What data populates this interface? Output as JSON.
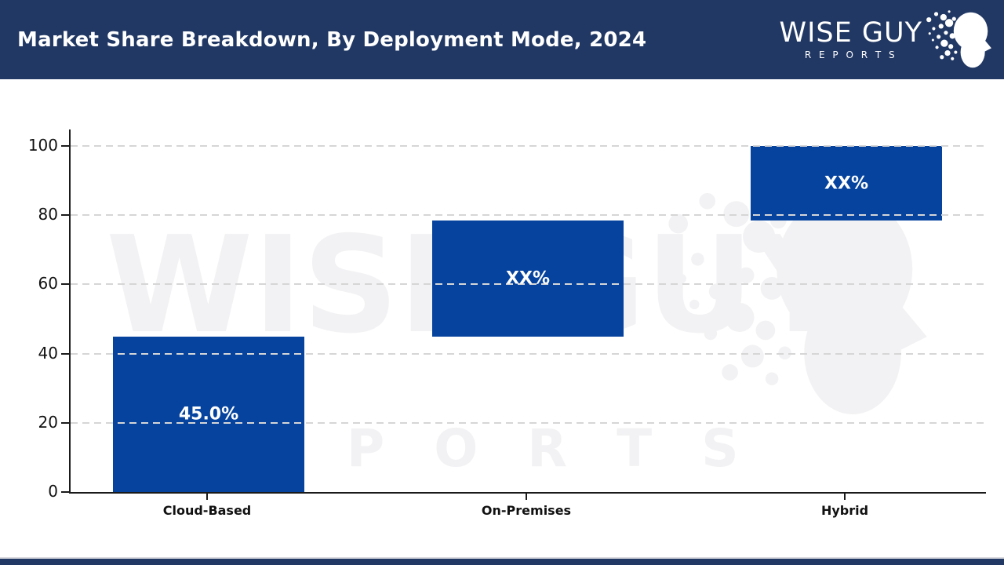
{
  "header": {
    "title": "Market Share Breakdown, By Deployment Mode, 2024",
    "bg_color": "#213864",
    "logo": {
      "line1": "WISE GUY",
      "line2": "R E P O R T S"
    }
  },
  "watermark": {
    "line1": "WISE GUY",
    "line2": "R E P O R T S"
  },
  "chart_data": {
    "type": "bar",
    "subtype": "floating-segment-waterfall",
    "title": "Market Share Breakdown, By Deployment Mode, 2024",
    "categories": [
      "Cloud-Based",
      "On-Premises",
      "Hybrid"
    ],
    "bars": [
      {
        "category": "Cloud-Based",
        "start": 0,
        "end": 45,
        "label": "45.0%"
      },
      {
        "category": "On-Premises",
        "start": 45,
        "end": 78.5,
        "label": "XX%"
      },
      {
        "category": "Hybrid",
        "start": 78.5,
        "end": 100,
        "label": "XX%"
      }
    ],
    "xlabel": "",
    "ylabel": "",
    "ylim": [
      0,
      104.8
    ],
    "yticks": [
      0,
      20,
      40,
      60,
      80,
      100
    ],
    "grid": "horizontal dashed, drawn above bars",
    "legend": "none",
    "bar_color": "#05439E",
    "bar_label_color": "#FFFFFF",
    "axis_color": "#1a1a1a"
  },
  "footer": {
    "bg_color": "#213864"
  }
}
